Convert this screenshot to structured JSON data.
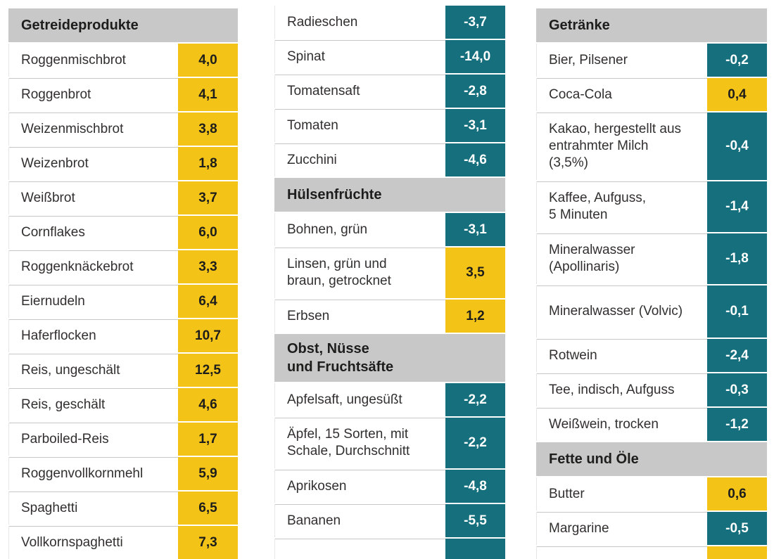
{
  "palette": {
    "positive_bg": "#f3c318",
    "negative_bg": "#166f7c",
    "header_bg": "#c8c8c8",
    "positive_text": "#1d1d1b",
    "negative_text": "#ffffff",
    "label_text": "#31302e",
    "row_bg": "#ffffff"
  },
  "columns": [
    {
      "blocks": [
        {
          "type": "header",
          "label": "Getreideprodukte"
        },
        {
          "type": "row",
          "label": "Roggenmischbrot",
          "value": "4,0",
          "sign": "positive"
        },
        {
          "type": "row",
          "label": "Roggenbrot",
          "value": "4,1",
          "sign": "positive"
        },
        {
          "type": "row",
          "label": "Weizenmischbrot",
          "value": "3,8",
          "sign": "positive"
        },
        {
          "type": "row",
          "label": "Weizenbrot",
          "value": "1,8",
          "sign": "positive"
        },
        {
          "type": "row",
          "label": "Weißbrot",
          "value": "3,7",
          "sign": "positive"
        },
        {
          "type": "row",
          "label": "Cornflakes",
          "value": "6,0",
          "sign": "positive"
        },
        {
          "type": "row",
          "label": "Roggenknäckebrot",
          "value": "3,3",
          "sign": "positive"
        },
        {
          "type": "row",
          "label": "Eiernudeln",
          "value": "6,4",
          "sign": "positive"
        },
        {
          "type": "row",
          "label": "Haferflocken",
          "value": "10,7",
          "sign": "positive"
        },
        {
          "type": "row",
          "label": "Reis, ungeschält",
          "value": "12,5",
          "sign": "positive"
        },
        {
          "type": "row",
          "label": "Reis, geschält",
          "value": "4,6",
          "sign": "positive"
        },
        {
          "type": "row",
          "label": "Parboiled-Reis",
          "value": "1,7",
          "sign": "positive"
        },
        {
          "type": "row",
          "label": "Roggenvollkornmehl",
          "value": "5,9",
          "sign": "positive"
        },
        {
          "type": "row",
          "label": "Spaghetti",
          "value": "6,5",
          "sign": "positive"
        },
        {
          "type": "row",
          "label": "Vollkornspaghetti",
          "value": "7,3",
          "sign": "positive"
        }
      ]
    },
    {
      "blocks": [
        {
          "type": "row",
          "label": "Radieschen",
          "value": "-3,7",
          "sign": "negative"
        },
        {
          "type": "row",
          "label": "Spinat",
          "value": "-14,0",
          "sign": "negative"
        },
        {
          "type": "row",
          "label": "Tomatensaft",
          "value": "-2,8",
          "sign": "negative"
        },
        {
          "type": "row",
          "label": "Tomaten",
          "value": "-3,1",
          "sign": "negative"
        },
        {
          "type": "row",
          "label": "Zucchini",
          "value": "-4,6",
          "sign": "negative"
        },
        {
          "type": "header",
          "label": "Hülsenfrüchte"
        },
        {
          "type": "row",
          "label": "Bohnen, grün",
          "value": "-3,1",
          "sign": "negative"
        },
        {
          "type": "row",
          "label": "Linsen, grün und\nbraun, getrocknet",
          "value": "3,5",
          "sign": "positive"
        },
        {
          "type": "row",
          "label": "Erbsen",
          "value": "1,2",
          "sign": "positive"
        },
        {
          "type": "header",
          "label": "Obst, Nüsse\nund Fruchtsäfte"
        },
        {
          "type": "row",
          "label": "Apfelsaft, ungesüßt",
          "value": "-2,2",
          "sign": "negative"
        },
        {
          "type": "row",
          "label": "Äpfel, 15 Sorten, mit\nSchale, Durchschnitt",
          "value": "-2,2",
          "sign": "negative"
        },
        {
          "type": "row",
          "label": "Aprikosen",
          "value": "-4,8",
          "sign": "negative"
        },
        {
          "type": "row",
          "label": "Bananen",
          "value": "-5,5",
          "sign": "negative"
        },
        {
          "type": "row",
          "label": "",
          "value": "",
          "sign": "negative",
          "partial": true
        }
      ]
    },
    {
      "blocks": [
        {
          "type": "header",
          "label": "Getränke"
        },
        {
          "type": "row",
          "label": "Bier, Pilsener",
          "value": "-0,2",
          "sign": "negative"
        },
        {
          "type": "row",
          "label": "Coca-Cola",
          "value": "0,4",
          "sign": "positive"
        },
        {
          "type": "row",
          "label": "Kakao, hergestellt aus\nentrahmter Milch\n(3,5%)",
          "value": "-0,4",
          "sign": "negative"
        },
        {
          "type": "row",
          "label": "Kaffee, Aufguss,\n5 Minuten",
          "value": "-1,4",
          "sign": "negative"
        },
        {
          "type": "row",
          "label": "Mineralwasser\n(Apollinaris)",
          "value": "-1,8",
          "sign": "negative"
        },
        {
          "type": "row",
          "label": "Mineralwasser (Volvic)",
          "value": "-0,1",
          "sign": "negative",
          "tall": true
        },
        {
          "type": "row",
          "label": "Rotwein",
          "value": "-2,4",
          "sign": "negative"
        },
        {
          "type": "row",
          "label": "Tee, indisch, Aufguss",
          "value": "-0,3",
          "sign": "negative"
        },
        {
          "type": "row",
          "label": "Weißwein, trocken",
          "value": "-1,2",
          "sign": "negative"
        },
        {
          "type": "header",
          "label": "Fette und Öle"
        },
        {
          "type": "row",
          "label": "Butter",
          "value": "0,6",
          "sign": "positive"
        },
        {
          "type": "row",
          "label": "Margarine",
          "value": "-0,5",
          "sign": "negative"
        },
        {
          "type": "row",
          "label": "",
          "value": "",
          "sign": "positive",
          "partial": true
        }
      ]
    }
  ]
}
